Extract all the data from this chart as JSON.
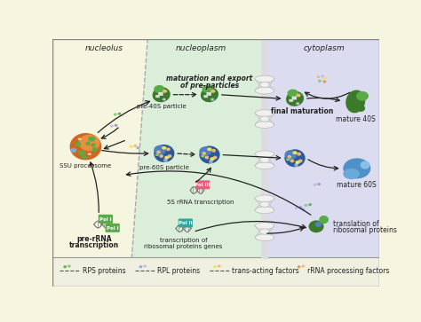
{
  "nucleolus_bg": "#f5f5e0",
  "nucleoplasm_bg": "#daeeda",
  "cytoplasm_bg": "#dcdcf0",
  "legend_bg": "#f0f0e0",
  "title_nucleolus": "nucleolus",
  "title_nucleoplasm": "nucleoplasm",
  "title_cytoplasm": "cytoplasm",
  "label_pre40s": "pre-40S particle",
  "label_pre60s": "pre-60S particle",
  "label_ssu": "SSU processome",
  "label_maturation_line1": "maturation and export",
  "label_maturation_line2": "of pre-particles",
  "label_final": "final maturation",
  "label_mature40s": "mature 40S",
  "label_mature60s": "mature 60S",
  "label_5s_line1": "5S rRNA transcription",
  "label_prerRNA_line1": "pre-rRNA",
  "label_prerRNA_line2": "transcription",
  "label_transcrip_line1": "transcription of",
  "label_transcrip_line2": "ribosomal proteins genes",
  "label_translation_line1": "translation of",
  "label_translation_line2": "ribosomal proteins",
  "label_pol1": "Pol I",
  "label_pol2": "Pol II",
  "label_pol3": "Pol III",
  "legend_rps": "RPS proteins",
  "legend_rpl": "RPL proteins",
  "legend_trans": "trans-acting factors",
  "legend_rrna": "rRNA processing factors",
  "green_dark": "#3a7a2a",
  "green_mid": "#5aaa48",
  "green_light": "#80c870",
  "blue_dark": "#2a5a9a",
  "blue_mid": "#5080c0",
  "blue_light": "#80aae0",
  "blue_mature": "#5090c8",
  "orange_dark": "#d06820",
  "orange_mid": "#e89040",
  "orange_light": "#f0b870",
  "yellow": "#e8c820",
  "yellow_light": "#f0e060",
  "pink": "#e06080",
  "teal": "#30a8a0",
  "purple_light": "#a090d0",
  "lavender": "#c0b8e8",
  "gray": "#888888",
  "white": "#ffffff",
  "black": "#111111",
  "text_color": "#222222",
  "arrow_color": "#222222",
  "npc_white": "#f0f0f0"
}
